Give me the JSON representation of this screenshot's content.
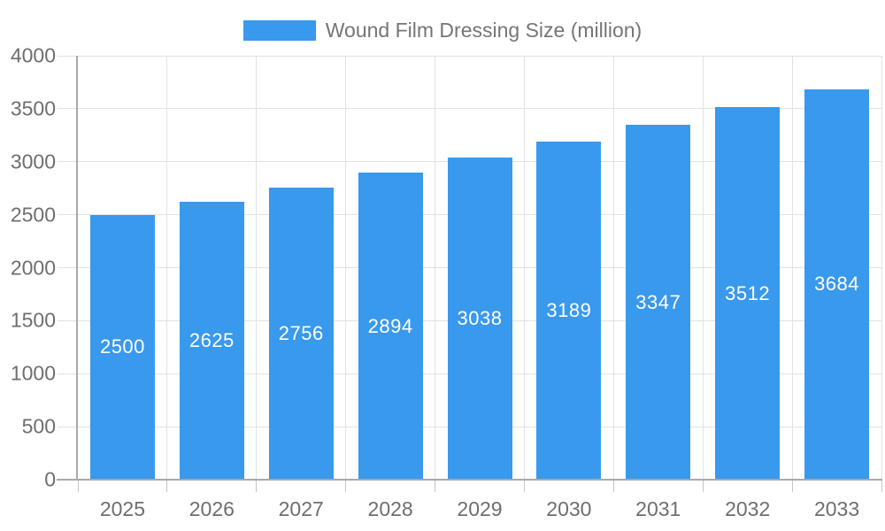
{
  "legend": {
    "label": "Wound Film Dressing Size (million)"
  },
  "chart_data": {
    "type": "bar",
    "title": "",
    "series_name": "Wound Film Dressing Size (million)",
    "categories": [
      "2025",
      "2026",
      "2027",
      "2028",
      "2029",
      "2030",
      "2031",
      "2032",
      "2033"
    ],
    "values": [
      2500,
      2625,
      2756,
      2894,
      3038,
      3189,
      3347,
      3512,
      3684
    ],
    "xlabel": "",
    "ylabel": "",
    "ylim": [
      0,
      4000
    ],
    "yticks": [
      0,
      500,
      1000,
      1500,
      2000,
      2500,
      3000,
      3500,
      4000
    ],
    "grid": true,
    "legend_position": "top",
    "bar_labels_inside": true,
    "colors": {
      "bar": "#3999EC",
      "bar_label": "#FFFFFF",
      "grid": "#E2E2E2",
      "axis_line": "#A9A9A9",
      "tick": "#C4C4C4",
      "axis_text": "#6E6E6E",
      "legend_text": "#757575",
      "background": "#FFFFFF"
    }
  }
}
